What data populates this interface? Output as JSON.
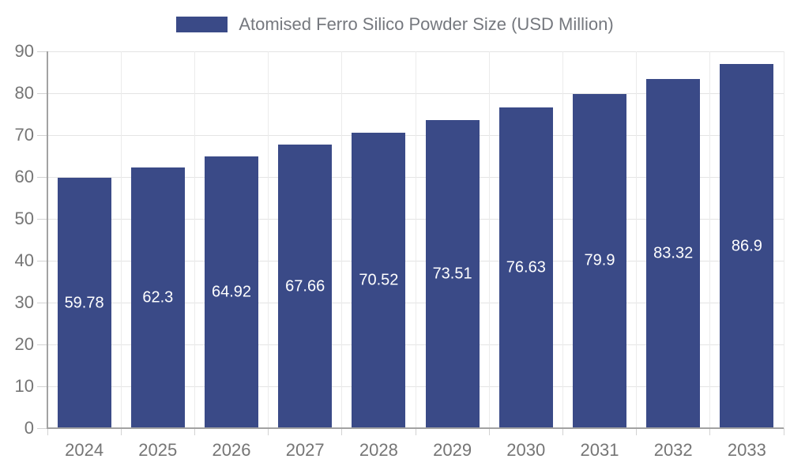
{
  "chart_data": {
    "type": "bar",
    "title": "Atomised Ferro Silico Powder Size (USD Million)",
    "categories": [
      "2024",
      "2025",
      "2026",
      "2027",
      "2028",
      "2029",
      "2030",
      "2031",
      "2032",
      "2033"
    ],
    "values": [
      59.78,
      62.3,
      64.92,
      67.66,
      70.52,
      73.51,
      76.63,
      79.9,
      83.32,
      86.9
    ],
    "value_labels": [
      "59.78",
      "62.3",
      "64.92",
      "67.66",
      "70.52",
      "73.51",
      "76.63",
      "79.9",
      "83.32",
      "86.9"
    ],
    "xlabel": "",
    "ylabel": "",
    "ylim": [
      0,
      90
    ],
    "yticks": [
      0,
      10,
      20,
      30,
      40,
      50,
      60,
      70,
      80,
      90
    ],
    "grid": true,
    "legend_position": "top-center",
    "colors": {
      "bar": "#3a4a87",
      "value_label": "#ffffff",
      "axis_text": "#757575",
      "legend_text": "#75787e",
      "gridline": "#e4e4e4",
      "axis_line": "#a2a2a2"
    }
  }
}
